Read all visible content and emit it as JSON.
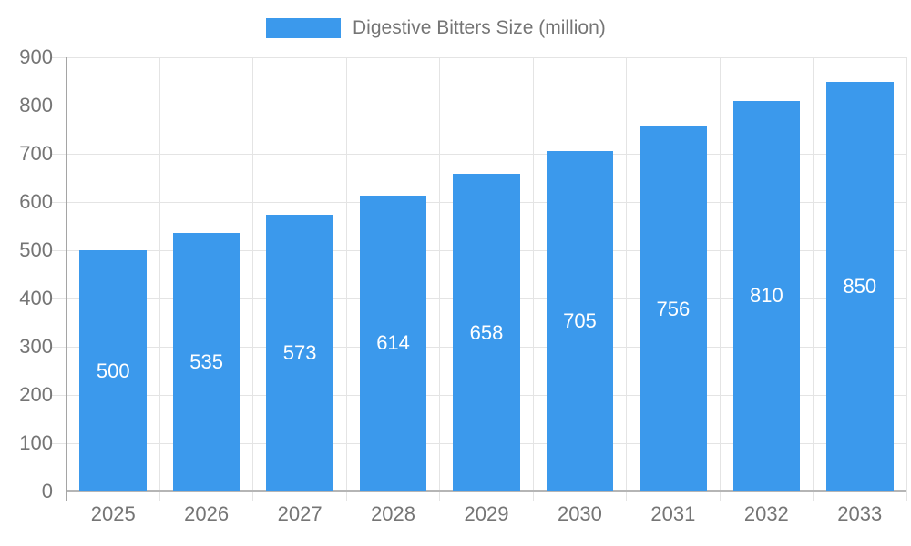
{
  "chart_data": {
    "type": "bar",
    "title": "",
    "legend_label": "Digestive Bitters Size (million)",
    "legend_position": "top-center",
    "categories": [
      "2025",
      "2026",
      "2027",
      "2028",
      "2029",
      "2030",
      "2031",
      "2032",
      "2033"
    ],
    "series": [
      {
        "name": "Digestive Bitters Size (million)",
        "values": [
          500,
          535,
          573,
          614,
          658,
          705,
          756,
          810,
          850
        ]
      }
    ],
    "bar_value_labels": [
      500,
      535,
      573,
      614,
      658,
      705,
      756,
      810,
      850
    ],
    "xlabel": "",
    "ylabel": "",
    "ylim": [
      0,
      900
    ],
    "ytick_step": 100,
    "ytick_labels": [
      "0",
      "100",
      "200",
      "300",
      "400",
      "500",
      "600",
      "700",
      "800",
      "900"
    ],
    "grid": true,
    "colors": {
      "bar": "#3b99ec",
      "bar_label": "#ffffff",
      "axis_text": "#757575",
      "grid_line": "#e4e4e4",
      "baseline": "#b5b5b5",
      "axis_line": "#a5a5a5",
      "background": "#ffffff"
    }
  }
}
